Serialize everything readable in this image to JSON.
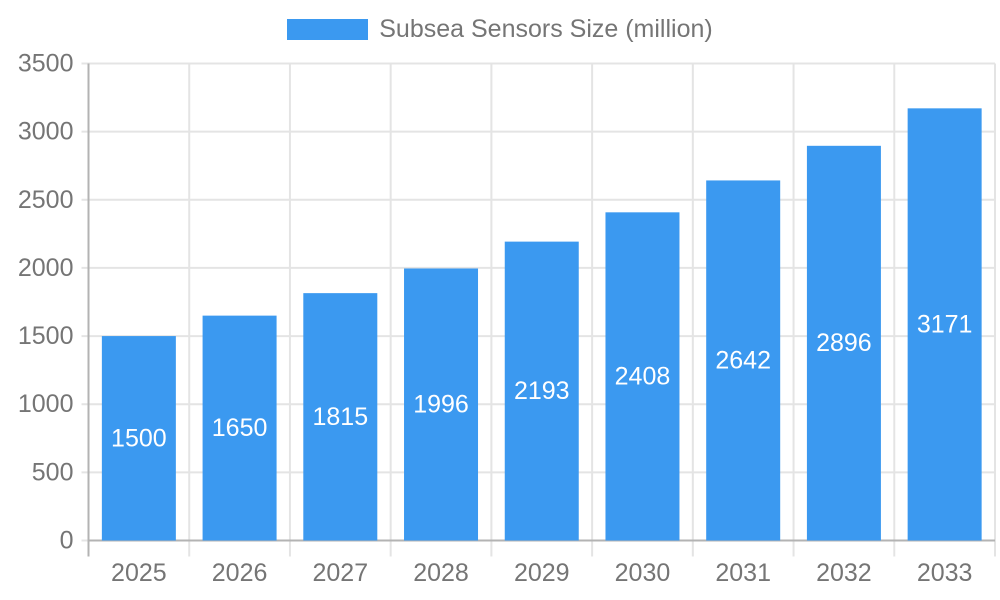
{
  "chart_data": {
    "type": "bar",
    "series_name": "Subsea Sensors Size (million)",
    "categories": [
      "2025",
      "2026",
      "2027",
      "2028",
      "2029",
      "2030",
      "2031",
      "2032",
      "2033"
    ],
    "values": [
      1500,
      1650,
      1815,
      1996,
      2193,
      2408,
      2642,
      2896,
      3171
    ],
    "title": "",
    "xlabel": "",
    "ylabel": "",
    "ylim": [
      0,
      3500
    ],
    "yticks": [
      0,
      500,
      1000,
      1500,
      2000,
      2500,
      3000,
      3500
    ],
    "grid": true,
    "legend_position": "top-center",
    "value_label_position": "inside-center",
    "colors": {
      "bar": "#3B99F0",
      "value_label": "#FFFFFF",
      "axis_text": "#757575",
      "grid_line": "#E4E4E4",
      "axis_line": "#B3B3B3",
      "background": "#FFFFFF"
    }
  }
}
